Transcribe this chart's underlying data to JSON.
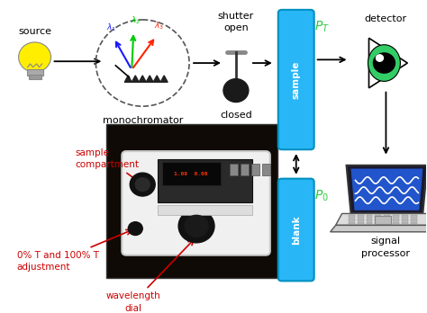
{
  "bg_color": "#ffffff",
  "tube_color": "#29b6f6",
  "tube_edge": "#0090c0",
  "annotation_color": "#cc0000",
  "green_label": "#2ecc40",
  "lambda_colors": [
    "#1a1aff",
    "#00cc00",
    "#ff2200"
  ],
  "bulb_color": "#ffee00",
  "source_label": "source",
  "mono_label": "monochromator",
  "shutter_open_label": "shutter\nopen",
  "shutter_closed_label": "closed",
  "sample_label": "sample",
  "blank_label": "blank",
  "pt_label": "$P_T$",
  "p0_label": "$P_0$",
  "detector_label": "detector",
  "signal_label": "signal\nprocessor",
  "ann1_text": "sample\ncompartment",
  "ann2_text": "0% T and 100% T\nadjustment",
  "ann3_text": "wavelength\ndial",
  "photo_bg": "#1a1008",
  "device_body": "#e8e8e8",
  "device_top": "#cccccc",
  "display_bg": "#111111",
  "led_color": "#ff2200",
  "knob_color": "#111111",
  "screen_color": "#2255cc"
}
